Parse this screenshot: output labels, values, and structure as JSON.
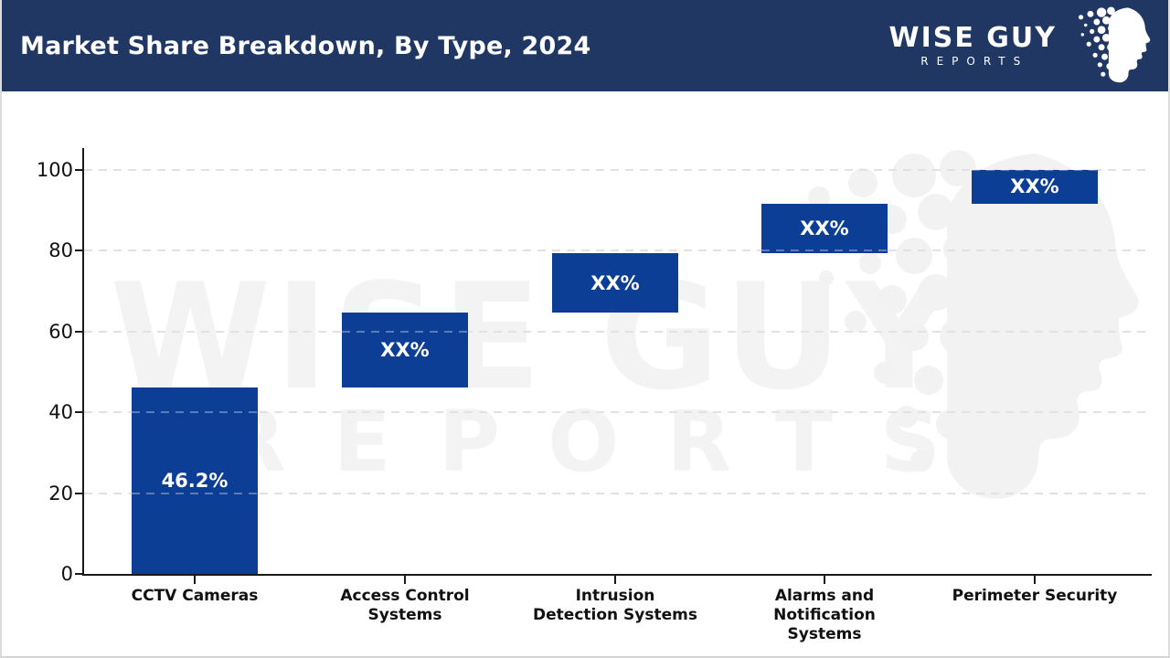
{
  "header": {
    "title": "Market Share Breakdown, By Type, 2024",
    "logo": {
      "line1": "WISE GUY",
      "line2": "REPORTS"
    }
  },
  "watermark": {
    "line1": "WISE GUY",
    "line2": "REPORTS"
  },
  "colors": {
    "header_bg": "#203764",
    "bar_blue": "#0c3e96",
    "grid_gray": "#e2e2e2",
    "axis_black": "#1a1a1a",
    "bar_label_white": "#ffffff",
    "watermark_gray": "#f3f3f3"
  },
  "chart_data": {
    "type": "bar",
    "subtype": "waterfall",
    "title": "Market Share Breakdown, By Type, 2024",
    "xlabel": "",
    "ylabel": "",
    "grid": "dashed-horizontal",
    "legend": "none",
    "ylim": [
      0,
      105.5
    ],
    "y_ticks": [
      0,
      20,
      40,
      60,
      80,
      100
    ],
    "categories": [
      "CCTV Cameras",
      "Access Control Systems",
      "Intrusion Detection Systems",
      "Alarms and Notification Systems",
      "Perimeter Security"
    ],
    "category_label_lines": [
      [
        "CCTV Cameras"
      ],
      [
        "Access Control",
        "Systems"
      ],
      [
        "Intrusion",
        "Detection Systems"
      ],
      [
        "Alarms and",
        "Notification",
        "Systems"
      ],
      [
        "Perimeter Security"
      ]
    ],
    "segments": [
      {
        "start": 0,
        "end": 46.2
      },
      {
        "start": 46.2,
        "end": 64.7
      },
      {
        "start": 64.7,
        "end": 79.3
      },
      {
        "start": 79.3,
        "end": 91.7
      },
      {
        "start": 91.7,
        "end": 100
      }
    ],
    "values": [
      46.2,
      18.5,
      14.6,
      12.4,
      8.3
    ],
    "bar_labels": [
      "46.2%",
      "XX%",
      "XX%",
      "XX%",
      "XX%"
    ]
  }
}
